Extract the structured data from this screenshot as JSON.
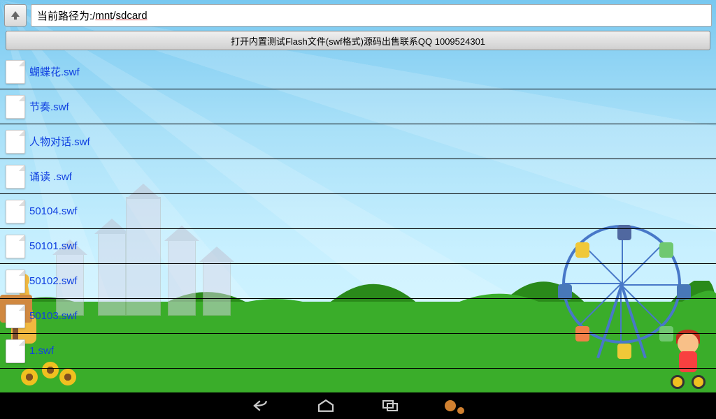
{
  "path": {
    "prefix": "当前路径为:/",
    "seg1": "mnt",
    "sep": "/",
    "seg2": "sdcard"
  },
  "action_label": "打开内置测试Flash文件(swf格式)源码出售联系QQ 1009524301",
  "files": [
    {
      "name": "蝴蝶花.swf"
    },
    {
      "name": "节奏.swf"
    },
    {
      "name": "人物对话.swf"
    },
    {
      "name": "诵读 .swf"
    },
    {
      "name": "50104.swf"
    },
    {
      "name": "50101.swf"
    },
    {
      "name": "50102.swf"
    },
    {
      "name": "50103.swf"
    },
    {
      "name": "1.swf"
    }
  ],
  "colors": {
    "link": "#1040e0",
    "sky_top": "#78c8f0",
    "grass": "#3aad2a",
    "ferris": "#4878c8"
  },
  "ferris_cabins": [
    {
      "angle": 0,
      "color": "#4878b8"
    },
    {
      "angle": 45,
      "color": "#70c870"
    },
    {
      "angle": 90,
      "color": "#f0c838"
    },
    {
      "angle": 135,
      "color": "#f08048"
    },
    {
      "angle": 180,
      "color": "#4878b8"
    },
    {
      "angle": 225,
      "color": "#f0c838"
    },
    {
      "angle": 270,
      "color": "#5068a0"
    },
    {
      "angle": 315,
      "color": "#70c870"
    }
  ]
}
